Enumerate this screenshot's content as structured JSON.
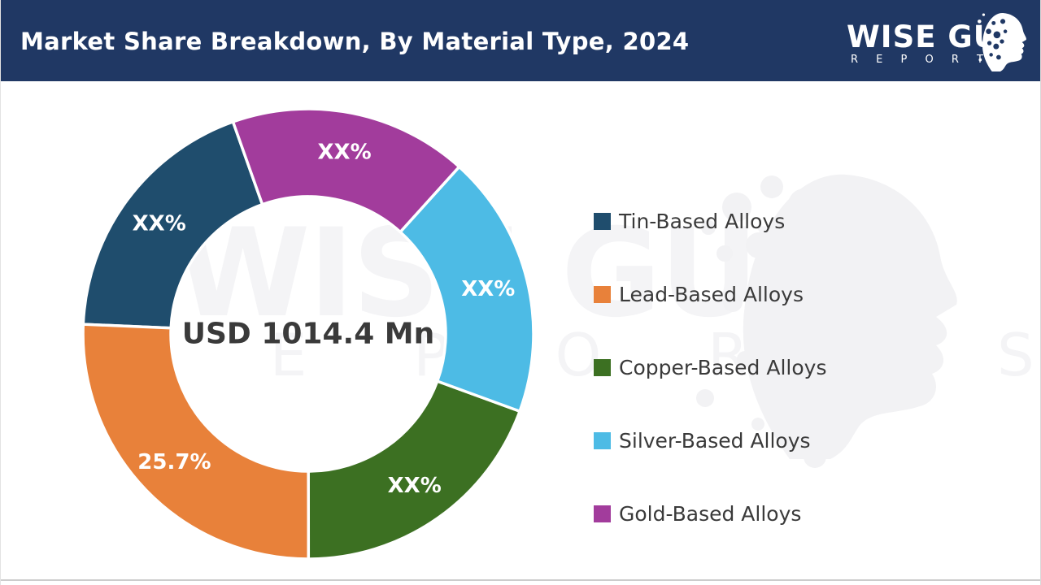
{
  "header": {
    "title": "Market Share Breakdown, By Material Type, 2024",
    "bg_color": "#203864",
    "logo": {
      "line1": "WISE GUY",
      "line2": "R E P O R T S",
      "face_icon": "dotted-head-profile-icon"
    }
  },
  "chart_data": {
    "type": "pie",
    "subtype": "donut",
    "title": "Market Share Breakdown, By Material Type, 2024",
    "center_label": "USD 1014.4 Mn",
    "legend_position": "right",
    "direction": "counterclockwise",
    "start_angle_conic_deg": 340.5,
    "inner_radius_ratio": 0.61,
    "slices": [
      {
        "name": "Tin-Based Alloys",
        "label": "XX%",
        "value_pct": 18.9,
        "color": "#1F4D6D"
      },
      {
        "name": "Lead-Based Alloys",
        "label": "25.7%",
        "value_pct": 25.7,
        "color": "#E8813A"
      },
      {
        "name": "Copper-Based Alloys",
        "label": "XX%",
        "value_pct": 19.4,
        "color": "#3C7022"
      },
      {
        "name": "Silver-Based Alloys",
        "label": "XX%",
        "value_pct": 18.9,
        "color": "#4DBBE5"
      },
      {
        "name": "Gold-Based Alloys",
        "label": "XX%",
        "value_pct": 17.1,
        "color": "#A23C9C"
      }
    ]
  },
  "watermark": {
    "line1": "WISE GUY",
    "line2": "R E P O R T S"
  },
  "colors": {
    "header_bg": "#203864",
    "text_dark": "#3a3a3a",
    "slice_label": "#ffffff",
    "watermark": "#f4f4f6",
    "divider": "#cccccc",
    "background": "#ffffff"
  }
}
